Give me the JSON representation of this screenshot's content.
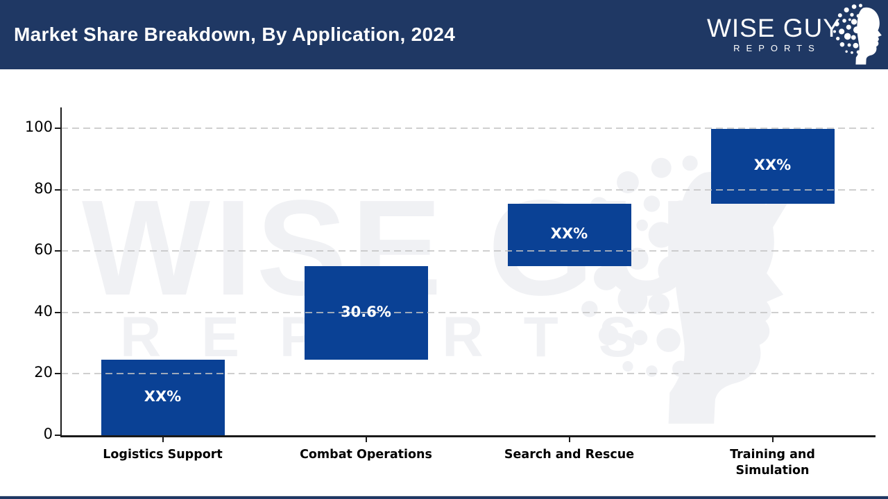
{
  "header": {
    "title": "Market Share Breakdown, By Application, 2024",
    "logo": {
      "wordmark": "WISE GUY",
      "subtext": "REPORTS"
    }
  },
  "watermark": {
    "line1": "WISE GUY",
    "line2": "REPORTS"
  },
  "colors": {
    "header_bg": "#1f3864",
    "bar": "#0a4195",
    "bar_label": "#ffffff",
    "axis": "#1a1a1a",
    "grid": "#c3c3c3",
    "text": "#000000",
    "watermark": "#f0f1f4"
  },
  "chart_data": {
    "type": "bar",
    "subtype": "floating-waterfall",
    "title": "Market Share Breakdown, By Application, 2024",
    "categories": [
      "Logistics Support",
      "Combat Operations",
      "Search and Rescue",
      "Training and\nSimulation"
    ],
    "bars": [
      {
        "category": "Logistics Support",
        "start": 0,
        "end": 24.5,
        "height": 24.5,
        "label": "XX%"
      },
      {
        "category": "Combat Operations",
        "start": 24.5,
        "end": 55.1,
        "height": 30.6,
        "label": "30.6%"
      },
      {
        "category": "Search and Rescue",
        "start": 55.1,
        "end": 75.4,
        "height": 20.3,
        "label": "XX%"
      },
      {
        "category": "Training and Simulation",
        "start": 75.4,
        "end": 99.8,
        "height": 24.4,
        "label": "XX%"
      }
    ],
    "xlabel": "",
    "ylabel": "",
    "yticks": [
      0,
      20,
      40,
      60,
      80,
      100
    ],
    "ylim": [
      0,
      105
    ],
    "grid": "horizontal-dashed",
    "legend": "none",
    "bar_color": "#0a4195"
  }
}
